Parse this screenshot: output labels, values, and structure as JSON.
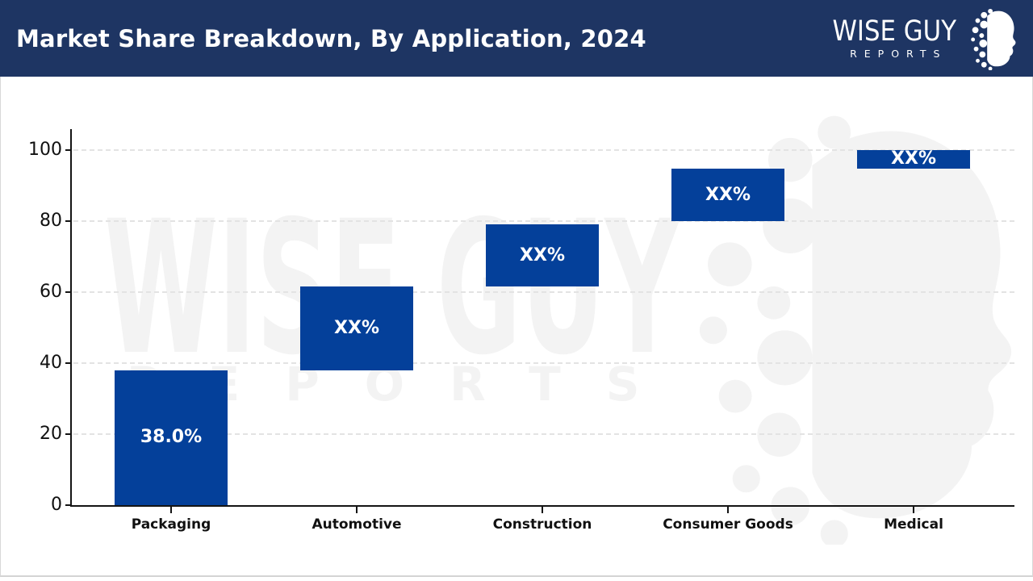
{
  "header": {
    "title": "Market Share Breakdown, By Application, 2024"
  },
  "logo": {
    "line1": "WISE GUY",
    "line2": "REPORTS"
  },
  "watermark": {
    "line1": "WISE GUY",
    "line2": "REPORTS"
  },
  "colors": {
    "header_bg": "#1e3563",
    "bar": "#04409a",
    "bar_label": "#ffffff",
    "axis": "#141414",
    "grid": "#e3e3e3",
    "watermark": "#f3f3f3"
  },
  "chart_data": {
    "type": "waterfall",
    "title": "Market Share Breakdown, By Application, 2024",
    "categories": [
      "Packaging",
      "Automotive",
      "Construction",
      "Consumer Goods",
      "Medical"
    ],
    "segments": [
      {
        "category": "Packaging",
        "start": 0,
        "end": 38,
        "label": "38.0%"
      },
      {
        "category": "Automotive",
        "start": 38,
        "end": 61.5,
        "label": "XX%"
      },
      {
        "category": "Construction",
        "start": 61.5,
        "end": 79,
        "label": "XX%"
      },
      {
        "category": "Consumer Goods",
        "start": 80,
        "end": 94.7,
        "label": "XX%"
      },
      {
        "category": "Medical",
        "start": 94.8,
        "end": 100,
        "label": "XX%"
      }
    ],
    "yticks": [
      0,
      20,
      40,
      60,
      80,
      100
    ],
    "ylim": [
      0,
      106
    ],
    "xlabel": "",
    "ylabel": "",
    "grid": "horizontal-dashed",
    "legend": "none"
  }
}
